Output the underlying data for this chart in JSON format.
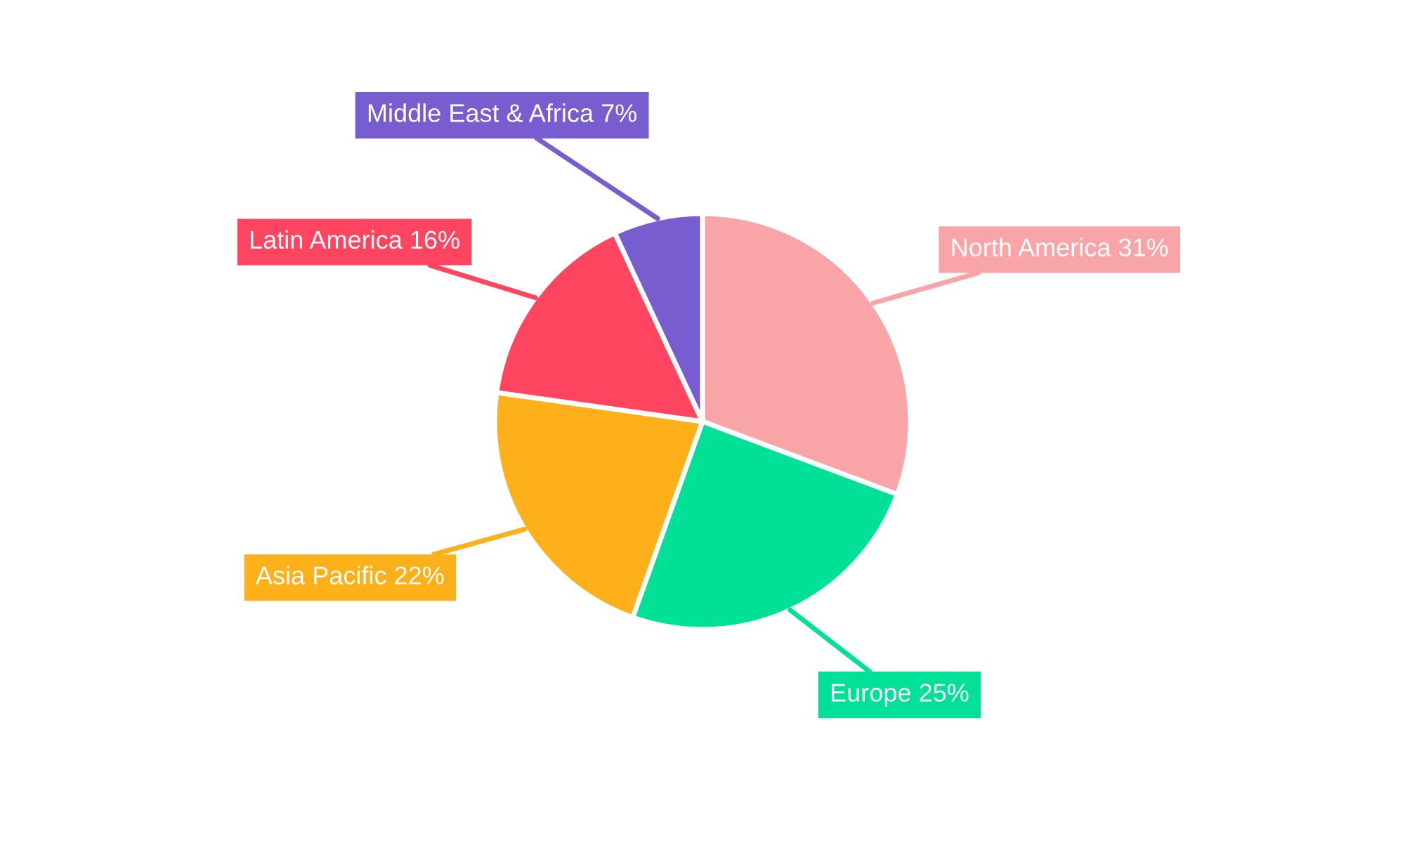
{
  "chart_data": {
    "type": "pie",
    "categories": [
      "North America",
      "Europe",
      "Asia Pacific",
      "Latin America",
      "Middle East & Africa"
    ],
    "values": [
      31,
      25,
      22,
      16,
      7
    ],
    "value_labels": [
      "31%",
      "25%",
      "22%",
      "16%",
      "7%"
    ],
    "colors": [
      "#f9a5a7",
      "#00e096",
      "#fdb01a",
      "#ff4560",
      "#775dd0"
    ],
    "legend": false
  }
}
